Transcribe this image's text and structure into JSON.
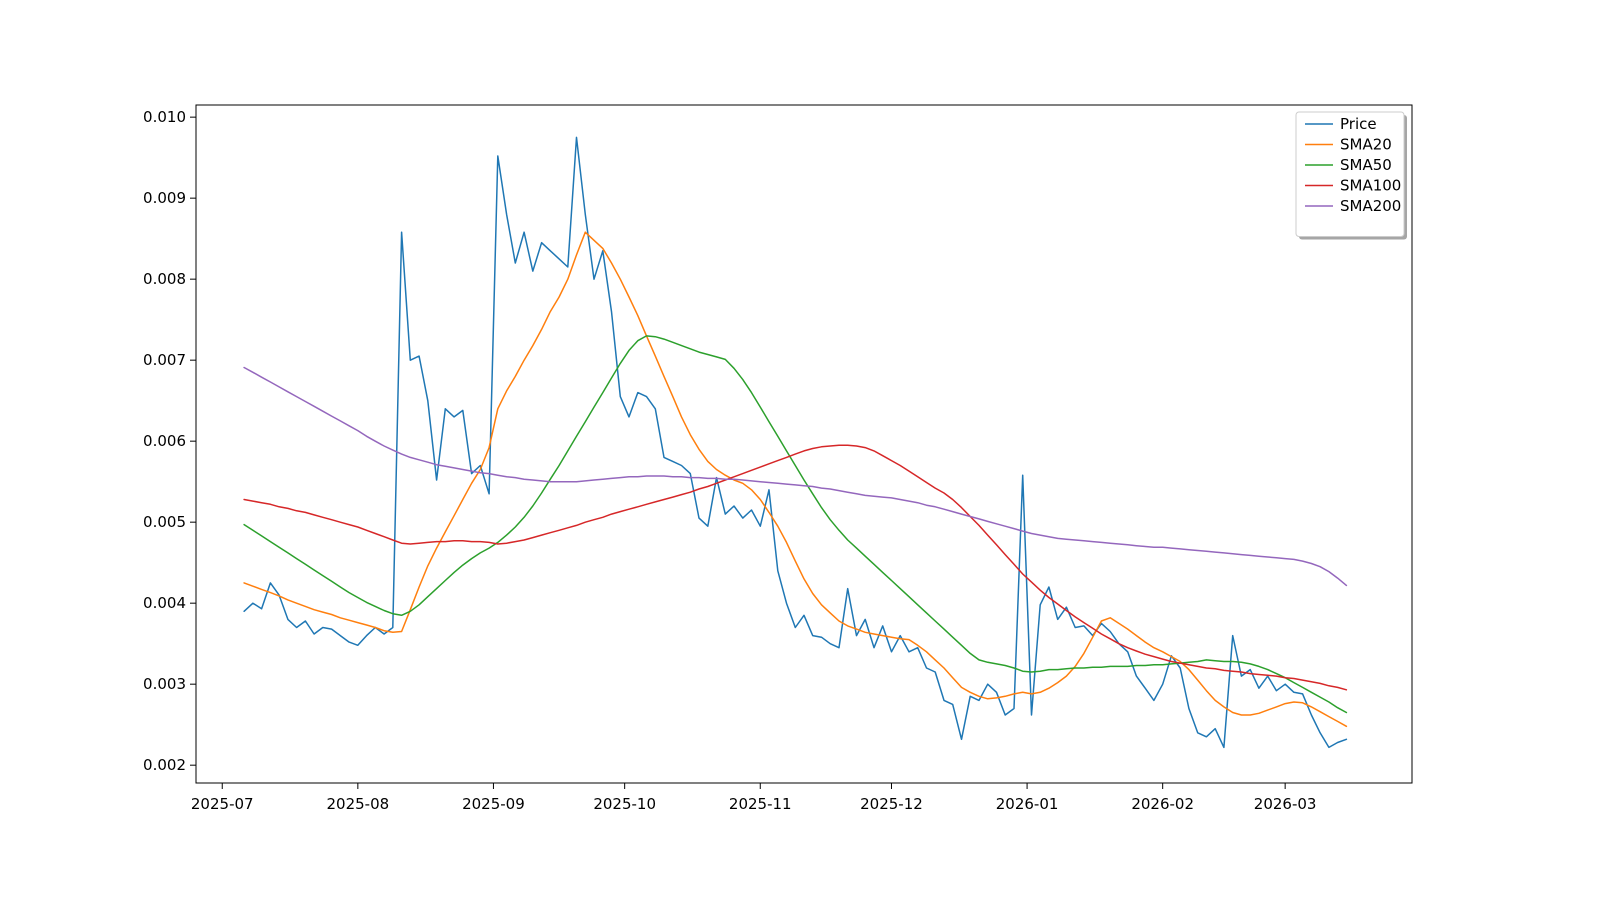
{
  "figure": {
    "background": "#ffffff",
    "spine_color": "#000000",
    "tick_color": "#000000",
    "legend_edge_color": "#cccccc",
    "legend_face_color": "#ffffff",
    "legend_shadow_color": "#a6a6a6"
  },
  "chart_data": {
    "type": "line",
    "title": "",
    "xlabel": "",
    "ylabel": "",
    "grid": false,
    "legend_position": "upper right",
    "x_start_date": "2025-07-06",
    "x_step_days": 2,
    "xlim": [
      "2025-06-25",
      "2026-03-30"
    ],
    "ylim": [
      0.00178,
      0.01015
    ],
    "x_tick_labels": [
      "2025-07",
      "2025-08",
      "2025-09",
      "2025-10",
      "2025-11",
      "2025-12",
      "2026-01",
      "2026-02",
      "2026-03"
    ],
    "x_tick_dates": [
      "2025-07-01",
      "2025-08-01",
      "2025-09-01",
      "2025-10-01",
      "2025-11-01",
      "2025-12-01",
      "2026-01-01",
      "2026-02-01",
      "2026-03-01"
    ],
    "y_tick_labels": [
      "0.002",
      "0.003",
      "0.004",
      "0.005",
      "0.006",
      "0.007",
      "0.008",
      "0.009",
      "0.010"
    ],
    "y_tick_values": [
      0.002,
      0.003,
      0.004,
      0.005,
      0.006,
      0.007,
      0.008,
      0.009,
      0.01
    ],
    "series": [
      {
        "name": "Price",
        "color": "#1f77b4",
        "values": [
          0.0039,
          0.004,
          0.00393,
          0.00425,
          0.0041,
          0.0038,
          0.0037,
          0.00378,
          0.00362,
          0.0037,
          0.00368,
          0.0036,
          0.00352,
          0.00348,
          0.0036,
          0.0037,
          0.00362,
          0.0037,
          0.00858,
          0.007,
          0.00705,
          0.0065,
          0.00552,
          0.0064,
          0.0063,
          0.00638,
          0.0056,
          0.0057,
          0.00535,
          0.00952,
          0.0088,
          0.0082,
          0.00858,
          0.0081,
          0.00845,
          0.00835,
          0.00825,
          0.00815,
          0.00975,
          0.0088,
          0.008,
          0.00835,
          0.0076,
          0.00655,
          0.0063,
          0.0066,
          0.00655,
          0.0064,
          0.0058,
          0.00575,
          0.0057,
          0.0056,
          0.00505,
          0.00495,
          0.00555,
          0.0051,
          0.0052,
          0.00505,
          0.00515,
          0.00495,
          0.0054,
          0.0044,
          0.004,
          0.0037,
          0.00385,
          0.0036,
          0.00358,
          0.0035,
          0.00345,
          0.00418,
          0.0036,
          0.0038,
          0.00345,
          0.00372,
          0.0034,
          0.0036,
          0.0034,
          0.00345,
          0.0032,
          0.00315,
          0.0028,
          0.00275,
          0.00232,
          0.00285,
          0.0028,
          0.003,
          0.0029,
          0.00262,
          0.0027,
          0.00558,
          0.00262,
          0.00398,
          0.0042,
          0.0038,
          0.00395,
          0.0037,
          0.00372,
          0.0036,
          0.00375,
          0.00365,
          0.0035,
          0.0034,
          0.0031,
          0.00295,
          0.0028,
          0.003,
          0.00335,
          0.0032,
          0.0027,
          0.0024,
          0.00235,
          0.00245,
          0.00222,
          0.0036,
          0.0031,
          0.00318,
          0.00295,
          0.0031,
          0.00292,
          0.003,
          0.0029,
          0.00288,
          0.00262,
          0.0024,
          0.00222,
          0.00228,
          0.00232
        ]
      },
      {
        "name": "SMA20",
        "color": "#ff7f0e",
        "values": [
          0.00425,
          0.00421,
          0.00417,
          0.00413,
          0.00409,
          0.00404,
          0.004,
          0.00396,
          0.00392,
          0.00389,
          0.00386,
          0.00382,
          0.00379,
          0.00376,
          0.00373,
          0.0037,
          0.00366,
          0.00364,
          0.00365,
          0.00392,
          0.0042,
          0.00446,
          0.00468,
          0.00488,
          0.00508,
          0.00528,
          0.00548,
          0.00565,
          0.00592,
          0.0064,
          0.00662,
          0.0068,
          0.007,
          0.00718,
          0.00738,
          0.0076,
          0.00778,
          0.008,
          0.0083,
          0.00858,
          0.00848,
          0.00838,
          0.0082,
          0.008,
          0.00778,
          0.00755,
          0.0073,
          0.00705,
          0.0068,
          0.00655,
          0.0063,
          0.00608,
          0.0059,
          0.00575,
          0.00565,
          0.00558,
          0.00552,
          0.00548,
          0.0054,
          0.00528,
          0.00512,
          0.00495,
          0.00475,
          0.00452,
          0.0043,
          0.00412,
          0.00398,
          0.00388,
          0.00378,
          0.00372,
          0.00368,
          0.00364,
          0.00362,
          0.0036,
          0.00358,
          0.00356,
          0.00355,
          0.00348,
          0.0034,
          0.0033,
          0.0032,
          0.00308,
          0.00296,
          0.0029,
          0.00285,
          0.00282,
          0.00283,
          0.00285,
          0.00288,
          0.0029,
          0.00288,
          0.0029,
          0.00295,
          0.00302,
          0.0031,
          0.00322,
          0.00338,
          0.00358,
          0.00378,
          0.00382,
          0.00375,
          0.00368,
          0.0036,
          0.00352,
          0.00345,
          0.0034,
          0.00334,
          0.00328,
          0.00318,
          0.00305,
          0.00292,
          0.0028,
          0.00272,
          0.00265,
          0.00262,
          0.00262,
          0.00264,
          0.00268,
          0.00272,
          0.00276,
          0.00278,
          0.00277,
          0.00272,
          0.00266,
          0.0026,
          0.00254,
          0.00248
        ]
      },
      {
        "name": "SMA50",
        "color": "#2ca02c",
        "values": [
          0.00497,
          0.0049,
          0.00483,
          0.00476,
          0.00469,
          0.00462,
          0.00455,
          0.00448,
          0.00441,
          0.00434,
          0.00427,
          0.0042,
          0.00413,
          0.00407,
          0.00401,
          0.00396,
          0.00391,
          0.00387,
          0.00385,
          0.0039,
          0.00398,
          0.00408,
          0.00418,
          0.00428,
          0.00438,
          0.00447,
          0.00455,
          0.00462,
          0.00468,
          0.00475,
          0.00484,
          0.00494,
          0.00506,
          0.0052,
          0.00536,
          0.00553,
          0.0057,
          0.00588,
          0.00606,
          0.00624,
          0.00642,
          0.0066,
          0.00678,
          0.00696,
          0.00712,
          0.00724,
          0.0073,
          0.00729,
          0.00726,
          0.00722,
          0.00718,
          0.00714,
          0.0071,
          0.00707,
          0.00704,
          0.00701,
          0.0069,
          0.00676,
          0.0066,
          0.00642,
          0.00624,
          0.00606,
          0.00588,
          0.0057,
          0.00552,
          0.00535,
          0.00518,
          0.00503,
          0.0049,
          0.00478,
          0.00468,
          0.00458,
          0.00448,
          0.00438,
          0.00428,
          0.00418,
          0.00408,
          0.00398,
          0.00388,
          0.00378,
          0.00368,
          0.00358,
          0.00348,
          0.00338,
          0.0033,
          0.00327,
          0.00325,
          0.00323,
          0.0032,
          0.00316,
          0.00315,
          0.00316,
          0.00318,
          0.00318,
          0.00319,
          0.0032,
          0.0032,
          0.00321,
          0.00321,
          0.00322,
          0.00322,
          0.00322,
          0.00323,
          0.00323,
          0.00324,
          0.00324,
          0.00325,
          0.00326,
          0.00327,
          0.00328,
          0.0033,
          0.00329,
          0.00328,
          0.00328,
          0.00327,
          0.00325,
          0.00322,
          0.00318,
          0.00313,
          0.00308,
          0.00302,
          0.00296,
          0.0029,
          0.00284,
          0.00278,
          0.00271,
          0.00265
        ]
      },
      {
        "name": "SMA100",
        "color": "#d62728",
        "values": [
          0.00528,
          0.00526,
          0.00524,
          0.00522,
          0.00519,
          0.00517,
          0.00514,
          0.00512,
          0.00509,
          0.00506,
          0.00503,
          0.005,
          0.00497,
          0.00494,
          0.0049,
          0.00486,
          0.00482,
          0.00478,
          0.00474,
          0.00473,
          0.00474,
          0.00475,
          0.00476,
          0.00476,
          0.00477,
          0.00477,
          0.00476,
          0.00476,
          0.00475,
          0.00473,
          0.00474,
          0.00476,
          0.00478,
          0.00481,
          0.00484,
          0.00487,
          0.0049,
          0.00493,
          0.00496,
          0.005,
          0.00503,
          0.00506,
          0.0051,
          0.00513,
          0.00516,
          0.00519,
          0.00522,
          0.00525,
          0.00528,
          0.00531,
          0.00534,
          0.00537,
          0.00541,
          0.00544,
          0.00548,
          0.00552,
          0.00556,
          0.0056,
          0.00564,
          0.00568,
          0.00572,
          0.00576,
          0.0058,
          0.00584,
          0.00588,
          0.00591,
          0.00593,
          0.00594,
          0.00595,
          0.00595,
          0.00594,
          0.00592,
          0.00588,
          0.00582,
          0.00576,
          0.0057,
          0.00563,
          0.00556,
          0.00549,
          0.00542,
          0.00536,
          0.00528,
          0.00518,
          0.00507,
          0.00496,
          0.00484,
          0.00472,
          0.0046,
          0.00448,
          0.00436,
          0.00426,
          0.00416,
          0.00407,
          0.00399,
          0.00391,
          0.00383,
          0.00376,
          0.00369,
          0.00362,
          0.00356,
          0.0035,
          0.00345,
          0.00341,
          0.00337,
          0.00334,
          0.00331,
          0.00328,
          0.00326,
          0.00324,
          0.00322,
          0.0032,
          0.00319,
          0.00317,
          0.00316,
          0.00315,
          0.00313,
          0.00312,
          0.00311,
          0.0031,
          0.00308,
          0.00307,
          0.00305,
          0.00303,
          0.00301,
          0.00298,
          0.00296,
          0.00293
        ]
      },
      {
        "name": "SMA200",
        "color": "#9467bd",
        "values": [
          0.00691,
          0.00685,
          0.00679,
          0.00673,
          0.00667,
          0.00661,
          0.00655,
          0.00649,
          0.00643,
          0.00637,
          0.00631,
          0.00625,
          0.00619,
          0.00613,
          0.00606,
          0.006,
          0.00594,
          0.00589,
          0.00584,
          0.0058,
          0.00577,
          0.00574,
          0.00571,
          0.00569,
          0.00567,
          0.00565,
          0.00563,
          0.00561,
          0.0056,
          0.00558,
          0.00556,
          0.00555,
          0.00553,
          0.00552,
          0.00551,
          0.0055,
          0.0055,
          0.0055,
          0.0055,
          0.00551,
          0.00552,
          0.00553,
          0.00554,
          0.00555,
          0.00556,
          0.00556,
          0.00557,
          0.00557,
          0.00557,
          0.00556,
          0.00556,
          0.00555,
          0.00555,
          0.00554,
          0.00554,
          0.00553,
          0.00553,
          0.00552,
          0.00551,
          0.0055,
          0.00549,
          0.00548,
          0.00547,
          0.00546,
          0.00545,
          0.00544,
          0.00542,
          0.00541,
          0.00539,
          0.00537,
          0.00535,
          0.00533,
          0.00532,
          0.00531,
          0.0053,
          0.00528,
          0.00526,
          0.00524,
          0.00521,
          0.00519,
          0.00516,
          0.00513,
          0.0051,
          0.00507,
          0.00504,
          0.00501,
          0.00498,
          0.00495,
          0.00492,
          0.00489,
          0.00486,
          0.00484,
          0.00482,
          0.0048,
          0.00479,
          0.00478,
          0.00477,
          0.00476,
          0.00475,
          0.00474,
          0.00473,
          0.00472,
          0.00471,
          0.0047,
          0.00469,
          0.00469,
          0.00468,
          0.00467,
          0.00466,
          0.00465,
          0.00464,
          0.00463,
          0.00462,
          0.00461,
          0.0046,
          0.00459,
          0.00458,
          0.00457,
          0.00456,
          0.00455,
          0.00454,
          0.00452,
          0.00449,
          0.00445,
          0.00439,
          0.00431,
          0.00422
        ]
      }
    ]
  }
}
